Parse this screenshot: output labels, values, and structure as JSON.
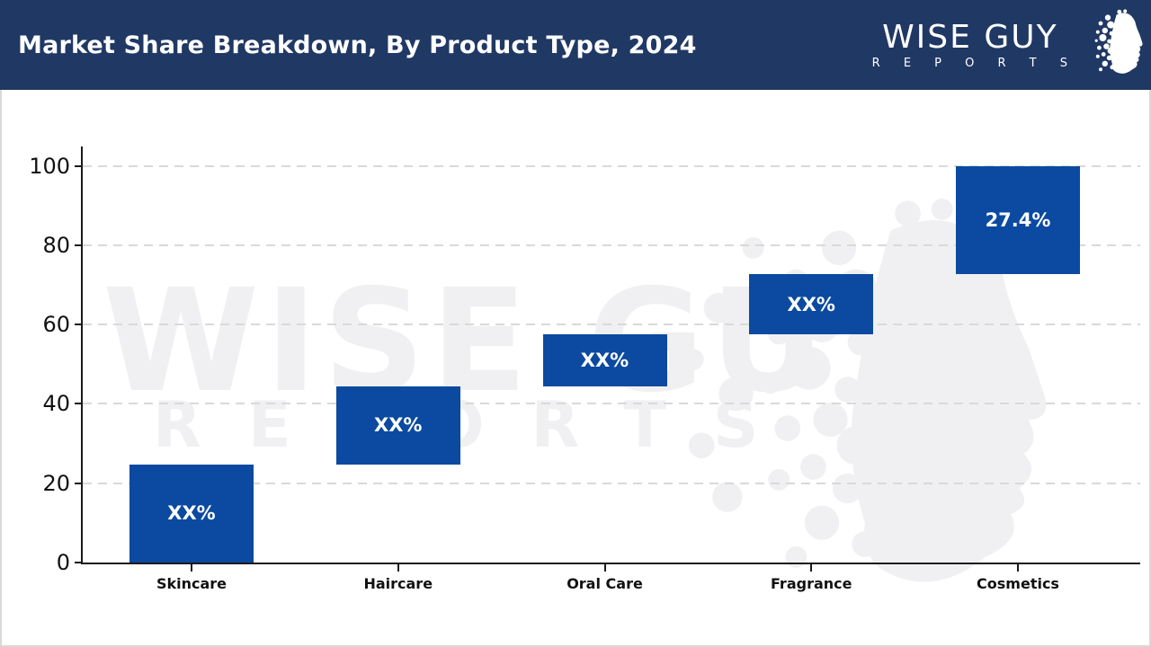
{
  "header": {
    "title": "Market Share Breakdown, By Product Type, 2024",
    "logo": {
      "line1": "WISE GUY",
      "line2": "REPORTS"
    }
  },
  "watermark": {
    "line1": "WISE GUY",
    "line2": "REPORTS"
  },
  "chart_data": {
    "type": "bar",
    "subtype": "waterfall",
    "title": "Market Share Breakdown, By Product Type, 2024",
    "categories": [
      "Skincare",
      "Haircare",
      "Oral Care",
      "Fragrance",
      "Cosmetics"
    ],
    "segments": [
      {
        "category": "Skincare",
        "start": 0,
        "end": 24.8,
        "value": 24.8,
        "label": "XX%"
      },
      {
        "category": "Haircare",
        "start": 24.8,
        "end": 44.4,
        "value": 19.6,
        "label": "XX%"
      },
      {
        "category": "Oral Care",
        "start": 44.4,
        "end": 57.6,
        "value": 13.2,
        "label": "XX%"
      },
      {
        "category": "Fragrance",
        "start": 57.6,
        "end": 72.6,
        "value": 15.0,
        "label": "XX%"
      },
      {
        "category": "Cosmetics",
        "start": 72.6,
        "end": 100,
        "value": 27.4,
        "label": "27.4%"
      }
    ],
    "yticks": [
      0,
      20,
      40,
      60,
      80,
      100
    ],
    "ylim": [
      0,
      105
    ],
    "xlabel": "",
    "ylabel": "",
    "grid": "horizontal-dashed",
    "legend": "none",
    "bar_color": "#0b4aa0",
    "bar_label_color": "#ffffff"
  },
  "colors": {
    "header_bg": "#203864",
    "bar": "#0b4aa0",
    "gridline": "#d9d9d9",
    "axis": "#1a1a1a",
    "watermark": "#f0f0f2",
    "page_border": "#d9d9d9"
  }
}
